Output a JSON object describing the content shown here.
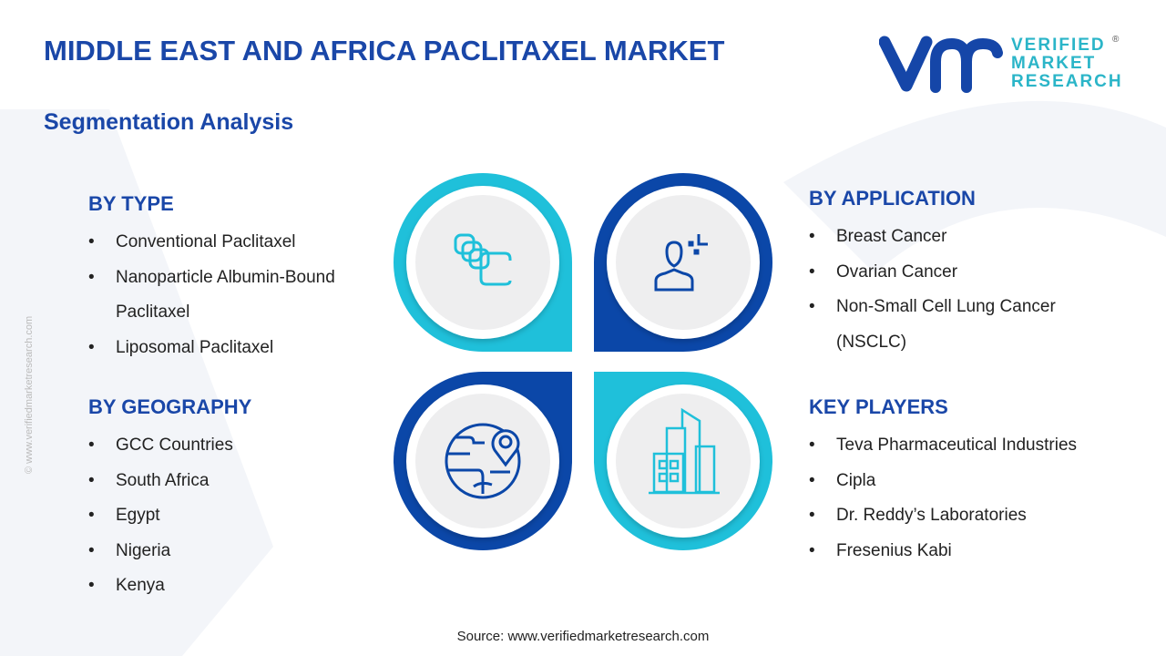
{
  "title": "MIDDLE EAST AND AFRICA PACLITAXEL MARKET",
  "subtitle": "Segmentation Analysis",
  "logo": {
    "line1": "VERIFIED",
    "line2": "MARKET",
    "line3": "RESEARCH",
    "reg": "®"
  },
  "colors": {
    "cyan": "#1fc0da",
    "blue": "#0b47a8",
    "title": "#1a47a8"
  },
  "sections": {
    "type": {
      "heading": "BY TYPE",
      "items": [
        "Conventional Paclitaxel",
        "Nanoparticle Albumin-Bound",
        "Paclitaxel",
        "Liposomal Paclitaxel"
      ]
    },
    "geography": {
      "heading": "BY GEOGRAPHY",
      "items": [
        "GCC Countries",
        "South Africa",
        "Egypt",
        "Nigeria",
        "Kenya"
      ]
    },
    "application": {
      "heading": "BY APPLICATION",
      "items": [
        "Breast Cancer",
        "Ovarian Cancer",
        "Non-Small Cell Lung Cancer",
        "(NSCLC)"
      ]
    },
    "players": {
      "heading": "KEY PLAYERS",
      "items": [
        "Teva Pharmaceutical Industries",
        "Cipla",
        "Dr. Reddy’s Laboratories",
        "Fresenius Kabi"
      ]
    }
  },
  "icons": [
    "capsules-icon",
    "person-icon",
    "globe-location-icon",
    "buildings-icon"
  ],
  "source": "Source: www.verifiedmarketresearch.com",
  "side_text": "© www.verifiedmarketresearch.com"
}
